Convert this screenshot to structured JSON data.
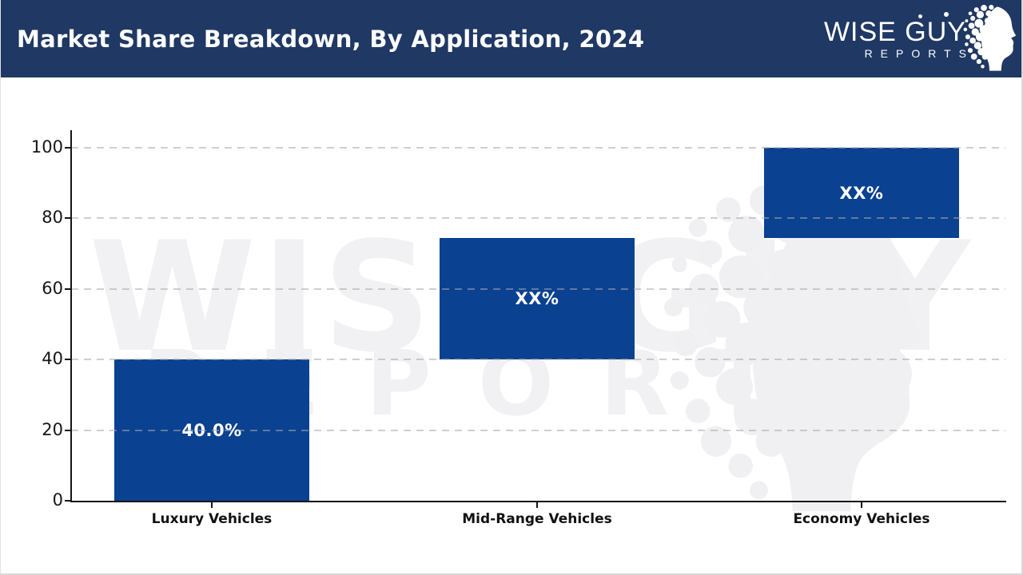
{
  "header": {
    "title": "Market Share Breakdown, By Application, 2024"
  },
  "logo": {
    "line1": "WISE GUY",
    "line2": "REPORTS",
    "icon": "dotted-head-profile-icon"
  },
  "watermark": {
    "line1": "WISE GUY",
    "line2": "REPORTS"
  },
  "colors": {
    "header_bg": "#1f3864",
    "bar_blue": "#0a4191",
    "bar_label": "#ffffff",
    "axis": "#161616",
    "gridline": "#c9c9c9"
  },
  "chart_data": {
    "type": "bar",
    "subtype": "stacked-waterfall",
    "title": "Market Share Breakdown, By Application, 2024",
    "categories": [
      "Luxury Vehicles",
      "Mid-Range Vehicles",
      "Economy Vehicles"
    ],
    "segments": [
      {
        "category": "Luxury Vehicles",
        "label": "40.0%",
        "start": 0,
        "end": 40
      },
      {
        "category": "Mid-Range Vehicles",
        "label": "XX%",
        "start": 40,
        "end": 74.4
      },
      {
        "category": "Economy Vehicles",
        "label": "XX%",
        "start": 74.4,
        "end": 100
      }
    ],
    "bar_labels": [
      "40.0%",
      "XX%",
      "XX%"
    ],
    "yticks": [
      0,
      20,
      40,
      60,
      80,
      100
    ],
    "ylim": [
      0,
      105
    ],
    "xlabel": "",
    "ylabel": "",
    "grid": "horizontal-dashed",
    "legend": "none",
    "bar_color": "#0a4191"
  }
}
